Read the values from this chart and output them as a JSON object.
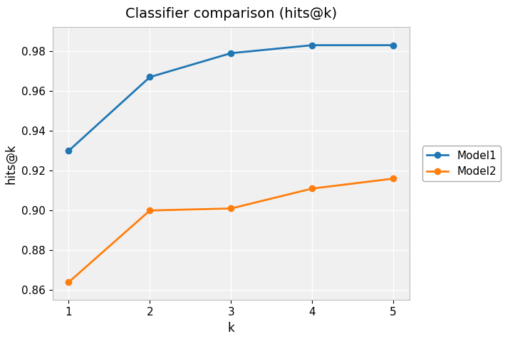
{
  "title": "Classifier comparison (hits@k)",
  "xlabel": "k",
  "ylabel": "hits@k",
  "k_values": [
    1,
    2,
    3,
    4,
    5
  ],
  "model1_values": [
    0.93,
    0.967,
    0.979,
    0.983,
    0.983
  ],
  "model2_values": [
    0.864,
    0.9,
    0.901,
    0.911,
    0.916
  ],
  "model1_color": "#1f77b4",
  "model2_color": "#ff7f0e",
  "model1_label": "Model1",
  "model2_label": "Model2",
  "ylim": [
    0.855,
    0.992
  ],
  "yticks": [
    0.86,
    0.88,
    0.9,
    0.92,
    0.94,
    0.96,
    0.98
  ],
  "background_color": "#ffffff",
  "ax_facecolor": "#f0f0f0",
  "grid_color": "#ffffff",
  "title_fontsize": 14,
  "axis_label_fontsize": 12,
  "tick_fontsize": 11,
  "legend_fontsize": 11,
  "line_width": 2.0,
  "marker": "o",
  "marker_size": 6
}
